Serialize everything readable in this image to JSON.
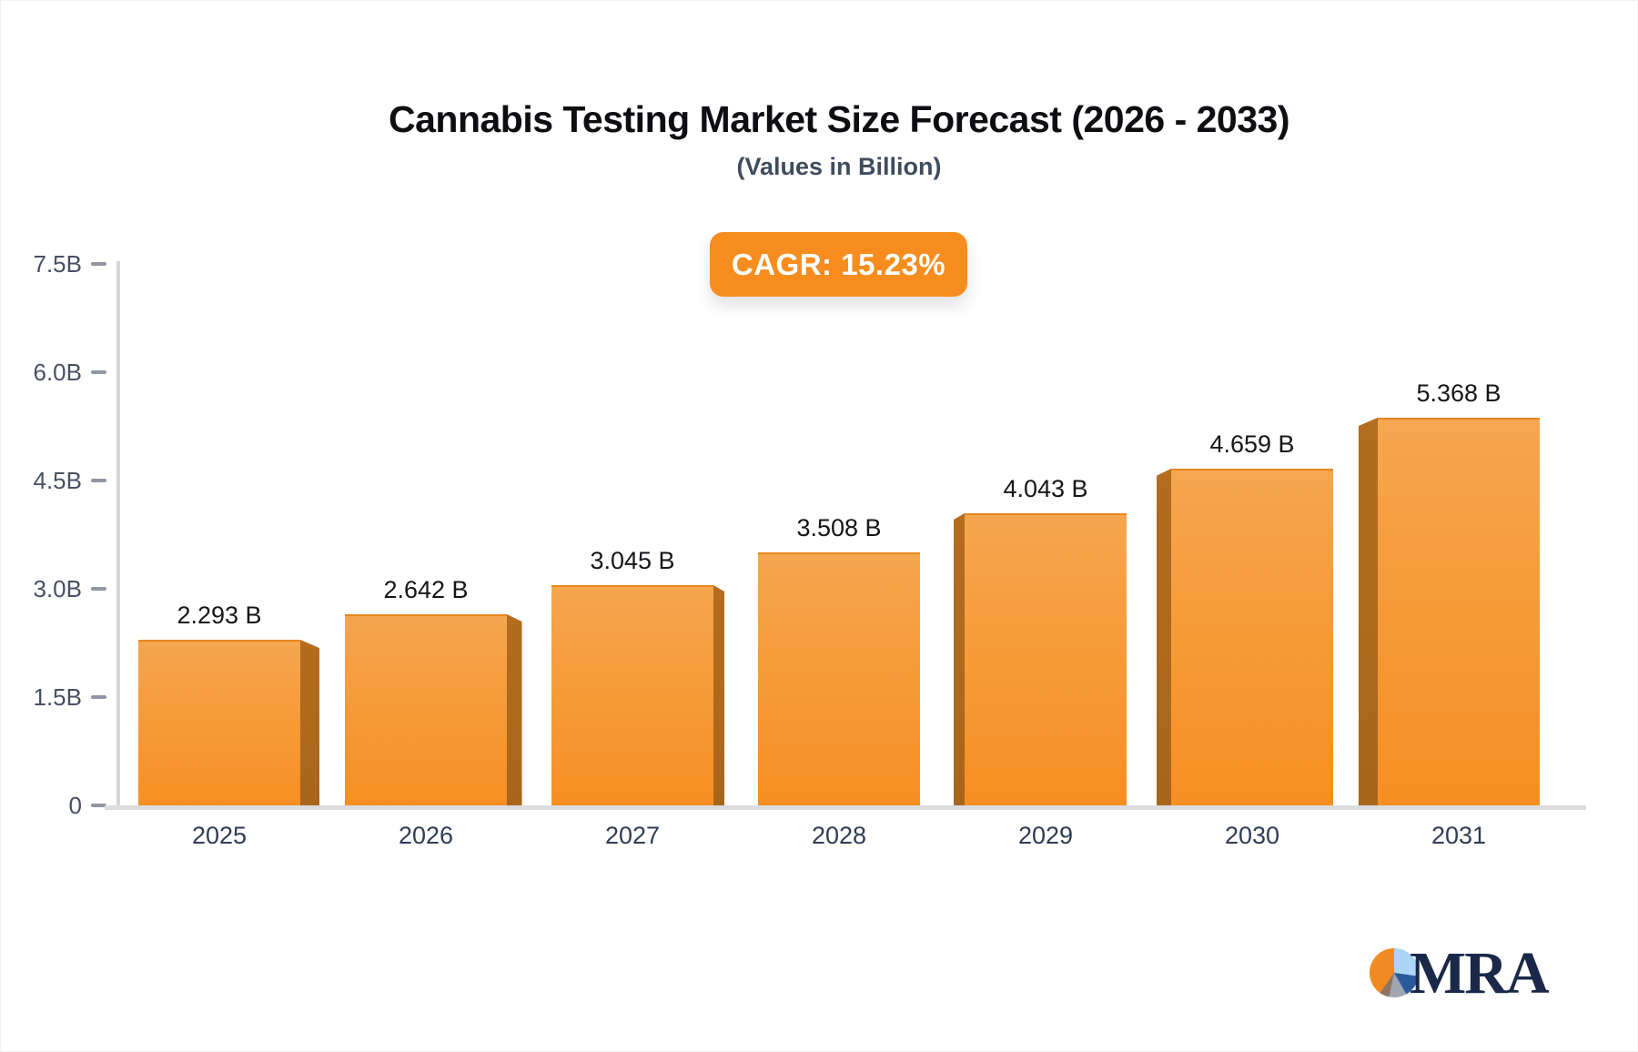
{
  "chart": {
    "title": "Cannabis Testing Market Size Forecast (2026 - 2033)",
    "subtitle": "(Values in Billion)",
    "cagr_label": "CAGR: 15.23%"
  },
  "chart_data": {
    "type": "bar",
    "categories": [
      "2025",
      "2026",
      "2027",
      "2028",
      "2029",
      "2030",
      "2031"
    ],
    "values": [
      2.293,
      2.642,
      3.045,
      3.508,
      4.043,
      4.659,
      5.368
    ],
    "value_labels": [
      "2.293 B",
      "2.642 B",
      "3.045 B",
      "3.508 B",
      "4.043 B",
      "4.659 B",
      "5.368 B"
    ],
    "title": "Cannabis Testing Market Size Forecast (2026 - 2033)",
    "subtitle": "(Values in Billion)",
    "annotation": "CAGR: 15.23%",
    "xlabel": "",
    "ylabel": "",
    "ylim": [
      0,
      7.5
    ],
    "y_ticks": [
      {
        "label": "0",
        "value": 0
      },
      {
        "label": "1.5B",
        "value": 1.5
      },
      {
        "label": "3.0B",
        "value": 3.0
      },
      {
        "label": "4.5B",
        "value": 4.5
      },
      {
        "label": "6.0B",
        "value": 6.0
      },
      {
        "label": "7.5B",
        "value": 7.5
      }
    ],
    "grid": false,
    "legend": "none",
    "bar_style": "3d-extruded, side faces point toward chart center"
  },
  "colors": {
    "bar_face_top": "#F5A64F",
    "bar_face_mid": "#F69B3A",
    "bar_face_bottom": "#F78F22",
    "bar_side": "#B46C1E",
    "badge_bg": "#F68D1E",
    "badge_text": "#FFFFFF",
    "axis_line": "#D6D7DC",
    "tick_text": "#475063",
    "x_label_text": "#2F3C55",
    "value_label_text": "#15161A",
    "title_text": "#0D0E12",
    "subtitle_text": "#3F4C5E",
    "logo_navy": "#1A2849",
    "logo_orange": "#F18A21",
    "logo_lightblue": "#A9D7F5",
    "logo_blue": "#2A5A9E",
    "logo_gray": "#9FA6B0"
  },
  "branding": {
    "logo_text": "MRA"
  }
}
